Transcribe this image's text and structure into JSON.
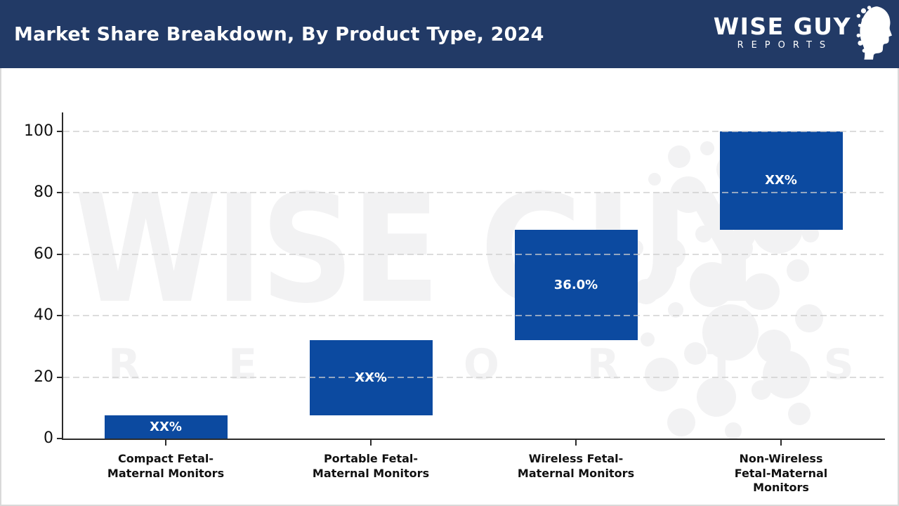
{
  "header": {
    "title": "Market Share Breakdown, By Product Type, 2024",
    "bg_color": "#223a66"
  },
  "logo": {
    "line1": "WISE GUY",
    "line2": "REPORTS",
    "face_icon": "dotted-head-profile"
  },
  "watermark": {
    "line1": "WISE GUY",
    "line2": "R E P O R T S",
    "color": "#f2f2f3"
  },
  "chart_data": {
    "type": "bar",
    "subtype": "waterfall",
    "title": "Market Share Breakdown, By Product Type, 2024",
    "xlabel": "",
    "ylabel": "",
    "ylim": [
      0,
      100
    ],
    "yticks": [
      0,
      20,
      40,
      60,
      80,
      100
    ],
    "grid": "horizontal-dashed",
    "legend": "none",
    "bar_color": "#0c4aa0",
    "label_color": "#ffffff",
    "categories": [
      [
        "Compact Fetal-",
        "Maternal Monitors"
      ],
      [
        "Portable Fetal-",
        "Maternal Monitors"
      ],
      [
        "Wireless Fetal-",
        "Maternal Monitors"
      ],
      [
        "Non-Wireless",
        "Fetal-Maternal",
        "Monitors"
      ]
    ],
    "segments": [
      {
        "start": 0,
        "end": 7.5,
        "value": 7.5,
        "label": "XX%"
      },
      {
        "start": 7.5,
        "end": 32,
        "value": 24.5,
        "label": "XX%"
      },
      {
        "start": 32,
        "end": 68,
        "value": 36.0,
        "label": "36.0%"
      },
      {
        "start": 68,
        "end": 100,
        "value": 32.0,
        "label": "XX%"
      }
    ]
  }
}
